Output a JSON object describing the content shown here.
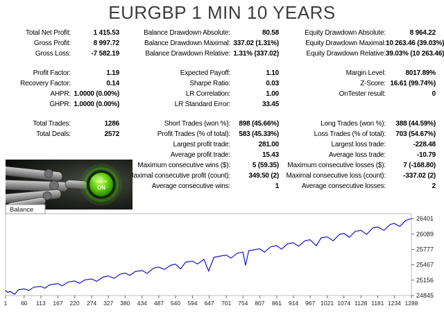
{
  "title": "EURGBP 1 MIN 10 YEARS",
  "stats": {
    "groups": [
      [
        [
          "Total Net Profit:",
          "1 415.53",
          "Balance Drawdown Absolute:",
          "80.58",
          "Equity Drawdown Absolute:",
          "8 964.22"
        ],
        [
          "Gross Profit:",
          "8 997.72",
          "Balance Drawdown Maximal:",
          "337.02 (1.31%)",
          "Equity Drawdown Maximal:",
          "10 263.46 (39.03%)"
        ],
        [
          "Gross Loss:",
          "-7 582.19",
          "Balance Drawdown Relative:",
          "1.31% (337.02)",
          "Equity Drawdown Relative:",
          "39.03% (10 263.46)"
        ]
      ],
      [
        [
          "Profit Factor:",
          "1.19",
          "Expected Payoff:",
          "1.10",
          "Margin Level:",
          "8017.89%"
        ],
        [
          "Recovery Factor:",
          "0.14",
          "Sharpe Ratio:",
          "0.03",
          "Z-Score:",
          "16.61 (99.74%)"
        ],
        [
          "AHPR:",
          "1.0000 (0.00%)",
          "LR Correlation:",
          "1.00",
          "OnTester result:",
          "0"
        ],
        [
          "GHPR:",
          "1.0000 (0.00%)",
          "LR Standard Error:",
          "33.45",
          "",
          ""
        ]
      ],
      [
        [
          "Total Trades:",
          "1286",
          "Short Trades (won %):",
          "898 (45.66%)",
          "Long Trades (won %):",
          "388 (44.59%)"
        ],
        [
          "Total Deals:",
          "2572",
          "Profit Trades (% of total):",
          "583 (45.33%)",
          "Loss Trades (% of total):",
          "703 (54.67%)"
        ],
        [
          "",
          "",
          "Largest profit trade:",
          "281.00",
          "Largest loss trade:",
          "-228.48"
        ],
        [
          "",
          "",
          "Average profit trade:",
          "15.43",
          "Average loss trade:",
          "-10.79"
        ],
        [
          "",
          "",
          "Maximum consecutive wins ($):",
          "5 (59.35)",
          "Maximum consecutive losses ($):",
          "7 (-168.80)"
        ],
        [
          "",
          "",
          "Maximal consecutive profit (count):",
          "349.50 (2)",
          "Maximal consecutive loss (count):",
          "-337.02 (2)"
        ],
        [
          "",
          "",
          "Average consecutive wins:",
          "1",
          "Average consecutive losses:",
          "2"
        ]
      ]
    ]
  },
  "promo": {
    "autopilot_label": "autopilot",
    "on_label": "ON",
    "button_color": "#46c800"
  },
  "chart_data": {
    "type": "line",
    "title": "Balance",
    "series_name": "Balance",
    "line_color": "#0000C8",
    "xlim": [
      1,
      1288
    ],
    "ylim": [
      24845,
      26500
    ],
    "x_ticks": [
      1,
      60,
      113,
      167,
      220,
      274,
      327,
      380,
      434,
      487,
      540,
      594,
      647,
      701,
      754,
      807,
      861,
      914,
      967,
      1021,
      1074,
      1128,
      1181,
      1234,
      1288
    ],
    "y_ticks": [
      24845,
      25156,
      25467,
      25777,
      26089,
      26401
    ],
    "points": [
      [
        1,
        24950
      ],
      [
        8,
        24905
      ],
      [
        15,
        24930
      ],
      [
        30,
        24872
      ],
      [
        42,
        24962
      ],
      [
        60,
        24978
      ],
      [
        75,
        24948
      ],
      [
        90,
        25012
      ],
      [
        113,
        25030
      ],
      [
        125,
        24992
      ],
      [
        140,
        25058
      ],
      [
        167,
        25088
      ],
      [
        180,
        25042
      ],
      [
        200,
        25118
      ],
      [
        220,
        25140
      ],
      [
        235,
        25092
      ],
      [
        252,
        25160
      ],
      [
        274,
        25180
      ],
      [
        290,
        25132
      ],
      [
        310,
        25218
      ],
      [
        327,
        25240
      ],
      [
        345,
        25192
      ],
      [
        365,
        25278
      ],
      [
        380,
        25300
      ],
      [
        395,
        25252
      ],
      [
        412,
        25330
      ],
      [
        434,
        25352
      ],
      [
        450,
        25292
      ],
      [
        470,
        25398
      ],
      [
        487,
        25420
      ],
      [
        505,
        25372
      ],
      [
        525,
        25458
      ],
      [
        540,
        25480
      ],
      [
        556,
        25382
      ],
      [
        572,
        25520
      ],
      [
        594,
        25540
      ],
      [
        610,
        25482
      ],
      [
        630,
        25578
      ],
      [
        645,
        25342
      ],
      [
        662,
        25618
      ],
      [
        680,
        25640
      ],
      [
        701,
        25662
      ],
      [
        716,
        25602
      ],
      [
        736,
        25700
      ],
      [
        754,
        25722
      ],
      [
        762,
        25455
      ],
      [
        772,
        25748
      ],
      [
        790,
        25772
      ],
      [
        807,
        25790
      ],
      [
        822,
        25722
      ],
      [
        842,
        25832
      ],
      [
        861,
        25852
      ],
      [
        876,
        25782
      ],
      [
        896,
        25892
      ],
      [
        914,
        25912
      ],
      [
        930,
        25842
      ],
      [
        950,
        25952
      ],
      [
        967,
        25972
      ],
      [
        986,
        25852
      ],
      [
        1002,
        26012
      ],
      [
        1021,
        26032
      ],
      [
        1040,
        25952
      ],
      [
        1060,
        26082
      ],
      [
        1074,
        26102
      ],
      [
        1091,
        26022
      ],
      [
        1110,
        26142
      ],
      [
        1128,
        26162
      ],
      [
        1146,
        26082
      ],
      [
        1166,
        26212
      ],
      [
        1181,
        26232
      ],
      [
        1201,
        26162
      ],
      [
        1221,
        26282
      ],
      [
        1234,
        26302
      ],
      [
        1251,
        26242
      ],
      [
        1270,
        26362
      ],
      [
        1288,
        26401
      ]
    ]
  }
}
